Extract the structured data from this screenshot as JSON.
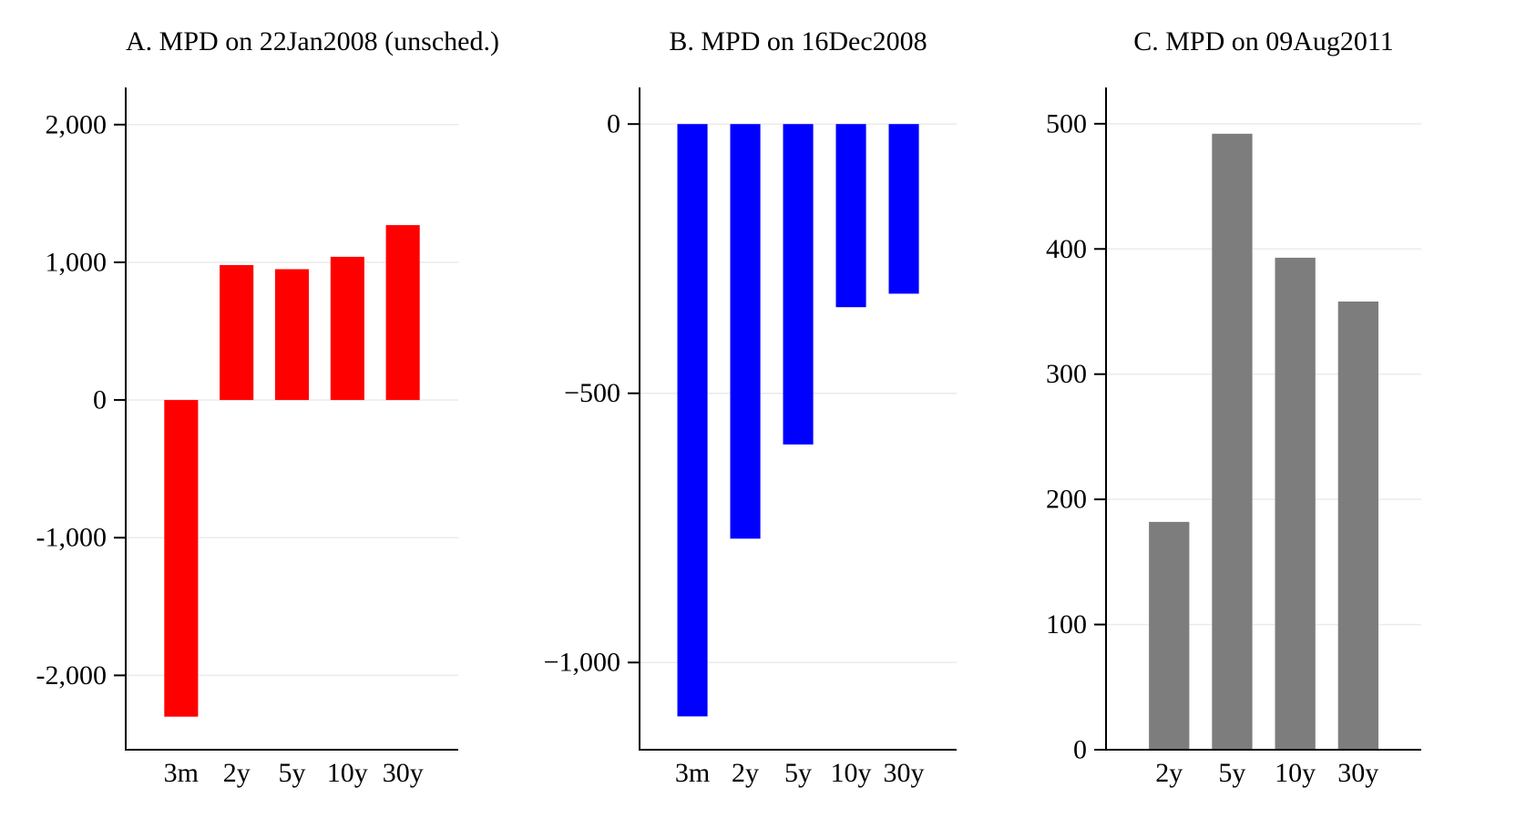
{
  "figure": {
    "background": "#ffffff",
    "axis_color": "#000000",
    "grid_color": "#ebebeb",
    "text_color": "#000000"
  },
  "chart_data": [
    {
      "type": "bar",
      "title": "A. MPD on 22Jan2008 (unsched.)",
      "categories": [
        "3m",
        "2y",
        "5y",
        "10y",
        "30y"
      ],
      "values": [
        -2300,
        980,
        950,
        1040,
        1270
      ],
      "bar_color": "#ff0000",
      "xlabel": "",
      "ylabel": "",
      "ylim": [
        -2540,
        2270
      ],
      "yticks": [
        {
          "value": 2000,
          "label": "2,000"
        },
        {
          "value": 1000,
          "label": "1,000"
        },
        {
          "value": 0,
          "label": "0"
        },
        {
          "value": -1000,
          "label": "-1,000"
        },
        {
          "value": -2000,
          "label": "-2,000"
        }
      ],
      "grid": true,
      "legend": "none"
    },
    {
      "type": "bar",
      "title": "B. MPD on 16Dec2008",
      "categories": [
        "3m",
        "2y",
        "5y",
        "10y",
        "30y"
      ],
      "values": [
        -1100,
        -770,
        -595,
        -340,
        -315
      ],
      "bar_color": "#0000ff",
      "xlabel": "",
      "ylabel": "",
      "ylim": [
        -1162,
        68
      ],
      "yticks": [
        {
          "value": 0,
          "label": "0"
        },
        {
          "value": -500,
          "label": "−500"
        },
        {
          "value": -1000,
          "label": "−1,000"
        }
      ],
      "grid": true,
      "legend": "none"
    },
    {
      "type": "bar",
      "title": "C. MPD on 09Aug2011",
      "categories": [
        "2y",
        "5y",
        "10y",
        "30y"
      ],
      "values": [
        182,
        492,
        393,
        358
      ],
      "bar_color": "#7d7d7d",
      "xlabel": "",
      "ylabel": "",
      "ylim": [
        0,
        529
      ],
      "yticks": [
        {
          "value": 0,
          "label": "0"
        },
        {
          "value": 100,
          "label": "100"
        },
        {
          "value": 200,
          "label": "200"
        },
        {
          "value": 300,
          "label": "300"
        },
        {
          "value": 400,
          "label": "400"
        },
        {
          "value": 500,
          "label": "500"
        }
      ],
      "grid": true,
      "legend": "none"
    }
  ]
}
